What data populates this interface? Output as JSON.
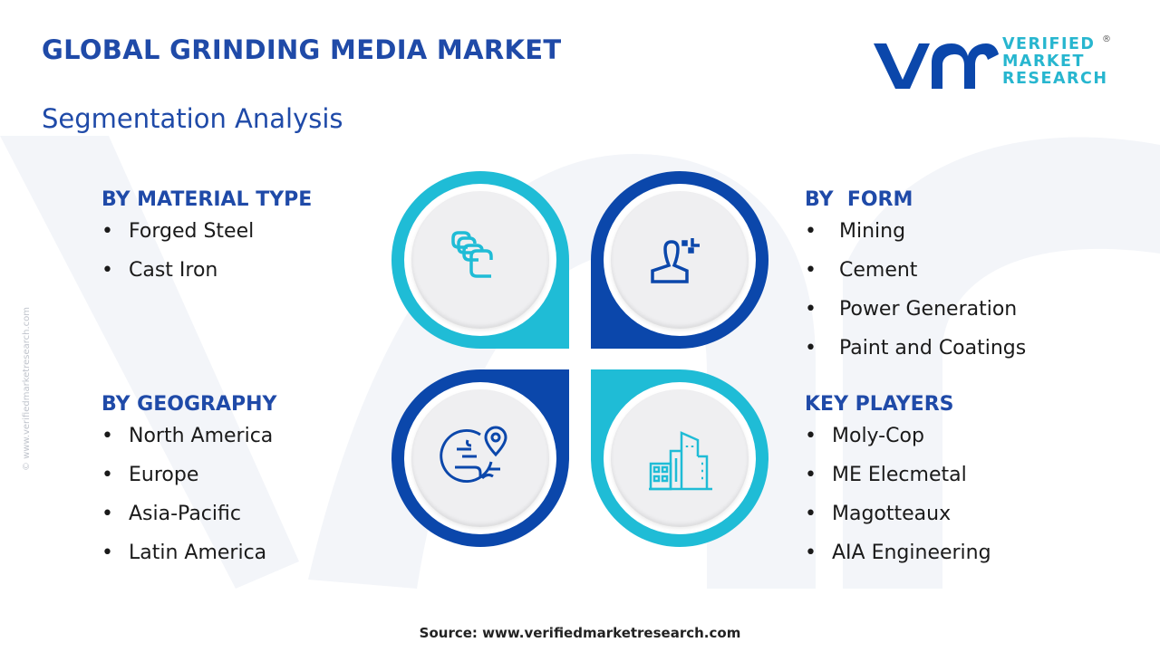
{
  "header": {
    "title": "GLOBAL GRINDING MEDIA MARKET",
    "subtitle": "Segmentation Analysis"
  },
  "logo": {
    "mark": "vmr",
    "text_lines": [
      "VERIFIED",
      "MARKET",
      "RESEARCH"
    ],
    "registered": "®"
  },
  "side_watermark": "© www.verifiedmarketresearch.com",
  "colors": {
    "dark_blue": "#0b47ab",
    "cyan": "#1fbcd6",
    "title": "#1f4aa8"
  },
  "segments": [
    {
      "heading": "BY MATERIAL TYPE",
      "icon": "balls-icon",
      "items": [
        "Forged Steel",
        "Cast Iron"
      ]
    },
    {
      "heading": "BY  FORM",
      "icon": "person-icon",
      "items": [
        "Mining",
        "Cement",
        "Power Generation",
        "Paint and Coatings"
      ]
    },
    {
      "heading": "BY GEOGRAPHY",
      "icon": "globe-pin-icon",
      "items": [
        "North America",
        "Europe",
        "Asia-Pacific",
        "Latin America"
      ]
    },
    {
      "heading": "KEY PLAYERS",
      "icon": "buildings-icon",
      "items": [
        "Moly-Cop",
        "ME Elecmetal",
        "Magotteaux",
        "AIA Engineering"
      ]
    }
  ],
  "source": "Source: www.verifiedmarketresearch.com"
}
